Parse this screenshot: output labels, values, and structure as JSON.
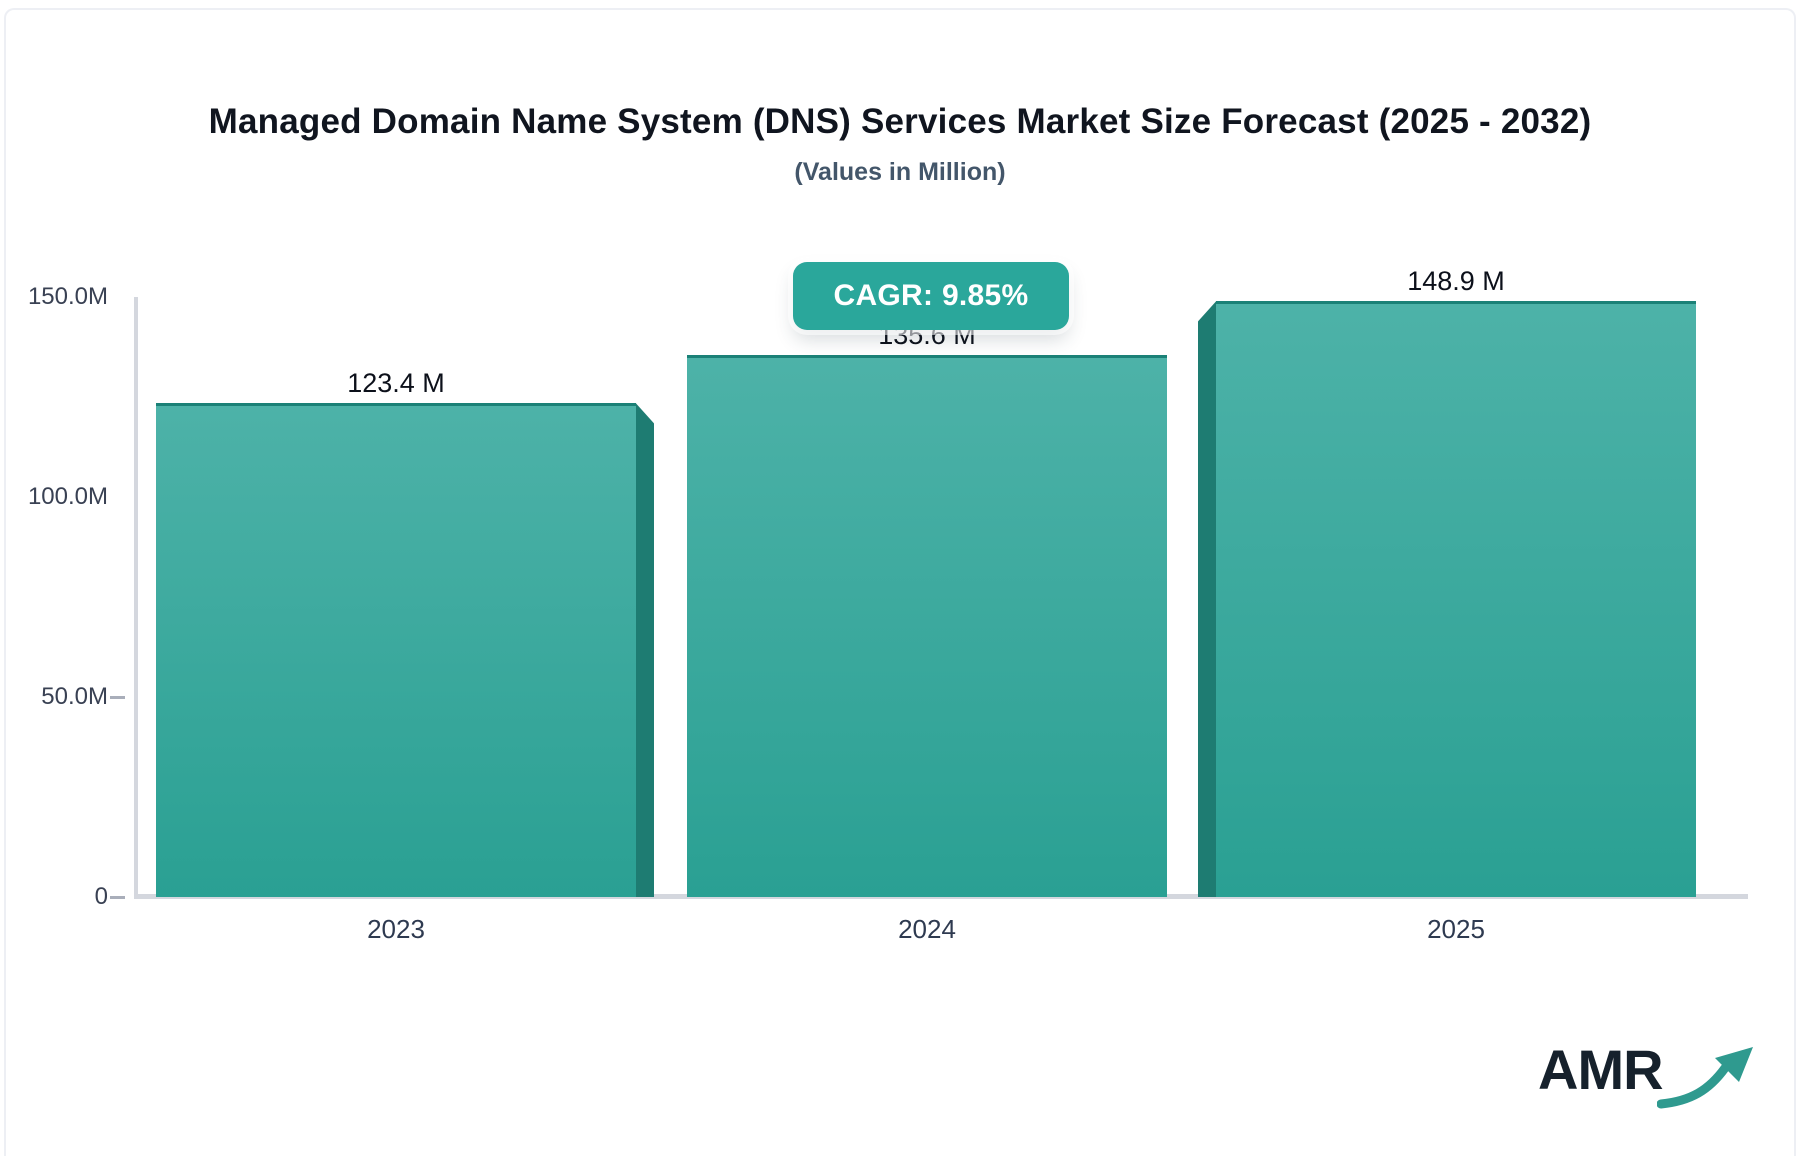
{
  "page": {
    "title": "Managed Domain Name System (DNS) Services Market Size Forecast (2025 - 2032)",
    "subtitle": "(Values in Million)"
  },
  "cagr_badge": {
    "label": "CAGR: 9.85%"
  },
  "chart_data": {
    "type": "bar",
    "title": "Managed Domain Name System (DNS) Services Market Size Forecast (2025 - 2032)",
    "subtitle": "(Values in Million)",
    "categories": [
      "2023",
      "2024",
      "2025"
    ],
    "values": [
      123.4,
      135.6,
      148.9
    ],
    "value_labels": [
      "123.4 M",
      "135.6 M",
      "148.9 M"
    ],
    "unit_suffix": "M",
    "ylim": [
      0,
      150
    ],
    "y_ticks": [
      {
        "label": "150.0M",
        "value": 150,
        "dash": false
      },
      {
        "label": "100.0M",
        "value": 100,
        "dash": false
      },
      {
        "label": "50.0M",
        "value": 50,
        "dash": true
      },
      {
        "label": "0",
        "value": 0,
        "dash": true
      }
    ],
    "grid": false,
    "legend": false,
    "annotation": "CAGR: 9.85%"
  },
  "logo": {
    "text": "AMR"
  },
  "colors": {
    "bar_top": "#4db2a8",
    "bar_bottom": "#2aa093",
    "bar_side": "#1e7c72",
    "bar_edge": "#1b8177",
    "badge_bg": "#2aa79b",
    "axis": "#d4d7de",
    "title_text": "#10151f",
    "subtitle_text": "#43566a",
    "tick_text": "#394153",
    "value_text": "#0c101a"
  }
}
